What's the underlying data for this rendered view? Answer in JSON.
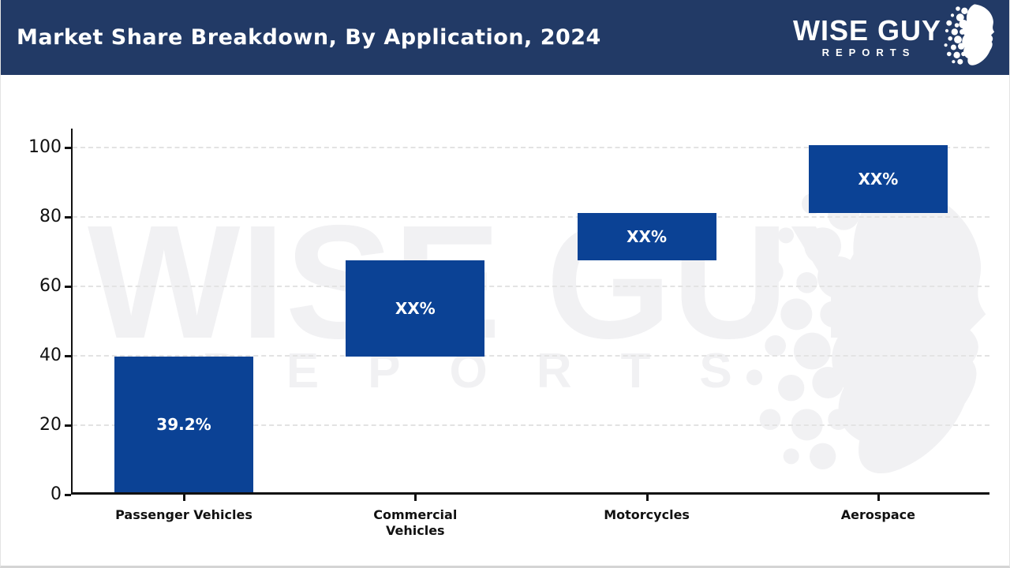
{
  "header": {
    "title": "Market Share Breakdown, By Application, 2024",
    "logo_line1": "WISE GUY",
    "logo_line2": "REPORTS"
  },
  "watermark": {
    "line1": "WISE GUY",
    "line2": "REPORTS"
  },
  "colors": {
    "header_bg": "#223a66",
    "bar": "#0b4295",
    "bar_label": "#ffffff",
    "axis": "#111111",
    "gridline": "#e3e3e3",
    "watermark": "#f1f1f3"
  },
  "chart_data": {
    "type": "bar",
    "subtype": "waterfall",
    "title": "Market Share Breakdown, By Application, 2024",
    "categories": [
      "Passenger Vehicles",
      "Commercial Vehicles",
      "Motorcycles",
      "Aerospace"
    ],
    "category_display_lines": [
      [
        "Passenger Vehicles"
      ],
      [
        "Commercial",
        "Vehicles"
      ],
      [
        "Motorcycles"
      ],
      [
        "Aerospace"
      ]
    ],
    "segments": [
      {
        "category": "Passenger Vehicles",
        "start": 0,
        "end": 39.2,
        "value": 39.2,
        "label": "39.2%"
      },
      {
        "category": "Commercial Vehicles",
        "start": 39.2,
        "end": 66.8,
        "value": 27.6,
        "label": "XX%"
      },
      {
        "category": "Motorcycles",
        "start": 66.8,
        "end": 80.5,
        "value": 13.7,
        "label": "XX%"
      },
      {
        "category": "Aerospace",
        "start": 80.5,
        "end": 100,
        "value": 19.5,
        "label": "XX%"
      }
    ],
    "xlabel": "",
    "ylabel": "",
    "ylim": [
      0,
      100
    ],
    "yticks": [
      0,
      20,
      40,
      60,
      80,
      100
    ],
    "grid": "horizontal-dashed",
    "legend": "none"
  }
}
